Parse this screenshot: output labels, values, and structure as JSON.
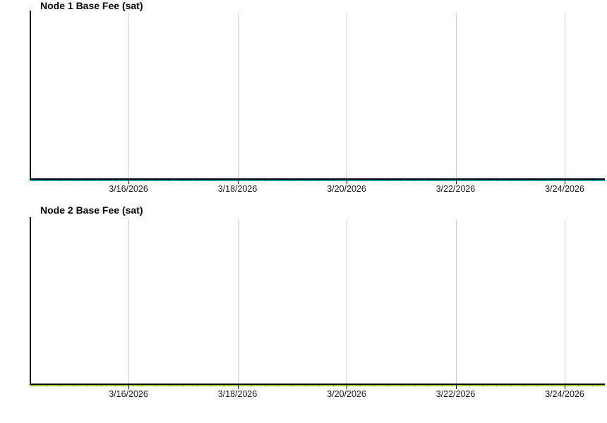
{
  "page": {
    "background_color": "#ffffff",
    "text_color": "#000000",
    "gridline_color": "#d1d1d1",
    "axis_color": "#000000"
  },
  "chart_data": [
    {
      "type": "line",
      "title": "Node 1 Base Fee (sat)",
      "xlabel": "",
      "ylabel": "",
      "x_ticks": [
        "3/16/2026",
        "3/18/2026",
        "3/20/2026",
        "3/22/2026",
        "3/24/2026"
      ],
      "x_visible_range": [
        "3/14/2026",
        "3/25/2026"
      ],
      "y_axis_tick_labels_visible": false,
      "grid": {
        "vertical": true,
        "horizontal": false
      },
      "legend": "none",
      "series": [
        {
          "name": "Node 1 Base Fee (sat)",
          "color": "#20a3b4",
          "shape": "flat-horizontal-line-at-baseline",
          "x": [
            "3/16/2026",
            "3/18/2026",
            "3/20/2026",
            "3/22/2026",
            "3/24/2026"
          ],
          "values": [
            0,
            0,
            0,
            0,
            0
          ]
        }
      ]
    },
    {
      "type": "line",
      "title": "Node 2 Base Fee (sat)",
      "xlabel": "",
      "ylabel": "",
      "x_ticks": [
        "3/16/2026",
        "3/18/2026",
        "3/20/2026",
        "3/22/2026",
        "3/24/2026"
      ],
      "x_visible_range": [
        "3/14/2026",
        "3/25/2026"
      ],
      "y_axis_tick_labels_visible": false,
      "grid": {
        "vertical": true,
        "horizontal": false
      },
      "legend": "none",
      "series": [
        {
          "name": "Node 2 Base Fee (sat)",
          "color": "#9acd32",
          "shape": "flat-horizontal-line-at-baseline",
          "x": [
            "3/16/2026",
            "3/18/2026",
            "3/20/2026",
            "3/22/2026",
            "3/24/2026"
          ],
          "values": [
            0,
            0,
            0,
            0,
            0
          ]
        }
      ]
    }
  ]
}
